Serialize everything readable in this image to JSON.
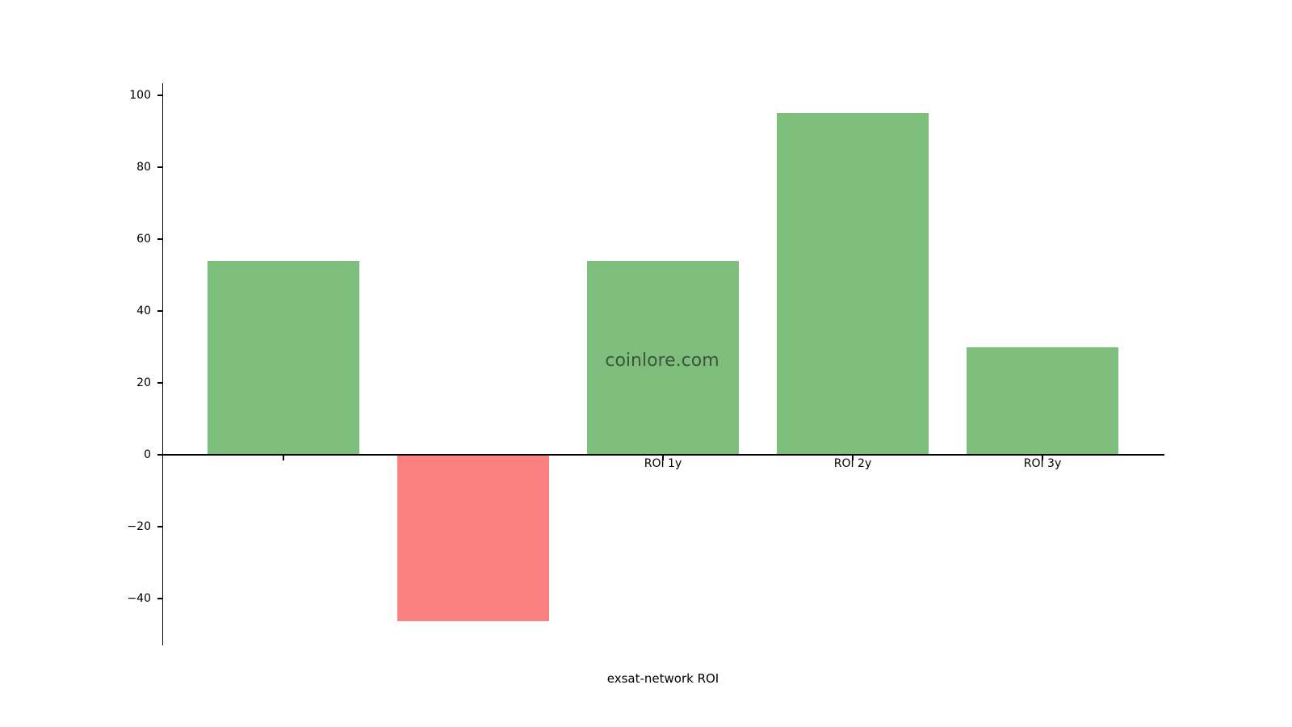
{
  "chart_data": {
    "type": "bar",
    "categories": [
      "",
      "",
      "ROI 1y",
      "ROI 2y",
      "ROI 3y"
    ],
    "values": [
      54,
      -46.3,
      54,
      95,
      30
    ],
    "title": "exsat-network ROI",
    "xlabel": "exsat-network ROI",
    "ylabel": "",
    "yticks": [
      100,
      80,
      60,
      40,
      20,
      0,
      -20,
      -40
    ],
    "ylim": [
      -53.4,
      103.4
    ],
    "grid": false,
    "legend": null,
    "positive_color": "#7dbe7d",
    "negative_color": "#fd8181",
    "axis_color": "#000000",
    "watermark": "coinlore.com"
  }
}
